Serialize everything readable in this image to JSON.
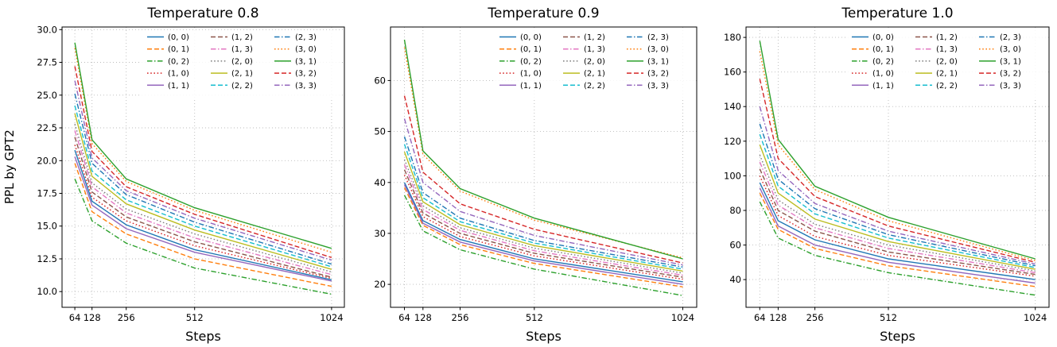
{
  "series_styles": [
    {
      "name": "(0, 0)",
      "color": "#1f77b4",
      "dash": "solid"
    },
    {
      "name": "(0, 1)",
      "color": "#ff7f0e",
      "dash": "dashed"
    },
    {
      "name": "(0, 2)",
      "color": "#2ca02c",
      "dash": "dashdot"
    },
    {
      "name": "(1, 0)",
      "color": "#d62728",
      "dash": "dotted"
    },
    {
      "name": "(1, 1)",
      "color": "#9467bd",
      "dash": "solid"
    },
    {
      "name": "(1, 2)",
      "color": "#8c564b",
      "dash": "dashed"
    },
    {
      "name": "(1, 3)",
      "color": "#e377c2",
      "dash": "dashdot"
    },
    {
      "name": "(2, 0)",
      "color": "#7f7f7f",
      "dash": "dotted"
    },
    {
      "name": "(2, 1)",
      "color": "#bcbd22",
      "dash": "solid"
    },
    {
      "name": "(2, 2)",
      "color": "#17becf",
      "dash": "dashed"
    },
    {
      "name": "(2, 3)",
      "color": "#1f77b4",
      "dash": "dashdot"
    },
    {
      "name": "(3, 0)",
      "color": "#ff7f0e",
      "dash": "dotted"
    },
    {
      "name": "(3, 1)",
      "color": "#2ca02c",
      "dash": "solid"
    },
    {
      "name": "(3, 2)",
      "color": "#d62728",
      "dash": "dashed"
    },
    {
      "name": "(3, 3)",
      "color": "#9467bd",
      "dash": "dashdot"
    }
  ],
  "legend": {
    "columns": 3,
    "rows": 5,
    "position": "upper-right"
  },
  "chart_data": [
    {
      "type": "line",
      "title": "Temperature 0.8",
      "xlabel": "Steps",
      "ylabel": "PPL by GPT2",
      "x": [
        64,
        128,
        256,
        512,
        1024
      ],
      "xlim": [
        16,
        1072
      ],
      "ylim": [
        8.8,
        30.2
      ],
      "xticks": [
        64,
        128,
        256,
        512,
        1024
      ],
      "xtick_labels": [
        "64",
        "128",
        "256",
        "512",
        "1024"
      ],
      "yticks": [
        10,
        12.5,
        15,
        17.5,
        20,
        22.5,
        25,
        27.5,
        30
      ],
      "ytick_labels": [
        "10.0",
        "12.5",
        "15.0",
        "17.5",
        "20.0",
        "22.5",
        "25.0",
        "27.5",
        "30.0"
      ],
      "grid": true,
      "series": [
        {
          "name": "(0, 0)",
          "values": [
            20.8,
            16.9,
            15.1,
            13.2,
            10.9
          ]
        },
        {
          "name": "(0, 1)",
          "values": [
            19.8,
            16.1,
            14.4,
            12.5,
            10.4
          ]
        },
        {
          "name": "(0, 2)",
          "values": [
            18.6,
            15.4,
            13.7,
            11.8,
            9.8
          ]
        },
        {
          "name": "(1, 0)",
          "values": [
            21.2,
            17.2,
            15.4,
            13.5,
            11.0
          ]
        },
        {
          "name": "(1, 1)",
          "values": [
            20.3,
            16.6,
            14.8,
            13.0,
            10.8
          ]
        },
        {
          "name": "(1, 2)",
          "values": [
            21.8,
            17.6,
            15.7,
            13.8,
            11.1
          ]
        },
        {
          "name": "(1, 3)",
          "values": [
            22.3,
            18.0,
            16.0,
            14.1,
            11.3
          ]
        },
        {
          "name": "(2, 0)",
          "values": [
            22.8,
            18.3,
            16.3,
            14.4,
            11.5
          ]
        },
        {
          "name": "(2, 1)",
          "values": [
            23.6,
            18.8,
            16.7,
            14.7,
            11.7
          ]
        },
        {
          "name": "(2, 2)",
          "values": [
            24.2,
            19.2,
            17.0,
            15.0,
            11.9
          ]
        },
        {
          "name": "(2, 3)",
          "values": [
            25.1,
            19.8,
            17.4,
            15.3,
            12.1
          ]
        },
        {
          "name": "(3, 0)",
          "values": [
            28.6,
            21.3,
            18.4,
            16.2,
            13.0
          ]
        },
        {
          "name": "(3, 1)",
          "values": [
            29.0,
            21.6,
            18.6,
            16.4,
            13.3
          ]
        },
        {
          "name": "(3, 2)",
          "values": [
            27.2,
            20.7,
            18.0,
            15.9,
            12.6
          ]
        },
        {
          "name": "(3, 3)",
          "values": [
            26.1,
            20.2,
            17.7,
            15.6,
            12.4
          ]
        }
      ]
    },
    {
      "type": "line",
      "title": "Temperature 0.9",
      "xlabel": "Steps",
      "x": [
        64,
        128,
        256,
        512,
        1024
      ],
      "xlim": [
        16,
        1072
      ],
      "ylim": [
        15.5,
        70.5
      ],
      "xticks": [
        64,
        128,
        256,
        512,
        1024
      ],
      "xtick_labels": [
        "64",
        "128",
        "256",
        "512",
        "1024"
      ],
      "yticks": [
        20,
        30,
        40,
        50,
        60
      ],
      "ytick_labels": [
        "20",
        "30",
        "40",
        "50",
        "60"
      ],
      "grid": true,
      "series": [
        {
          "name": "(0, 0)",
          "values": [
            40.0,
            32.5,
            28.8,
            25.0,
            20.5
          ]
        },
        {
          "name": "(0, 1)",
          "values": [
            39.0,
            31.6,
            27.8,
            24.1,
            19.5
          ]
        },
        {
          "name": "(0, 2)",
          "values": [
            37.5,
            30.5,
            26.8,
            23.0,
            17.8
          ]
        },
        {
          "name": "(1, 0)",
          "values": [
            41.5,
            33.3,
            29.4,
            25.6,
            21.0
          ]
        },
        {
          "name": "(1, 1)",
          "values": [
            39.6,
            32.0,
            28.3,
            24.6,
            20.0
          ]
        },
        {
          "name": "(1, 2)",
          "values": [
            42.5,
            34.0,
            30.0,
            26.1,
            21.4
          ]
        },
        {
          "name": "(1, 3)",
          "values": [
            43.5,
            34.7,
            30.6,
            26.6,
            21.8
          ]
        },
        {
          "name": "(2, 0)",
          "values": [
            44.5,
            35.4,
            31.1,
            27.1,
            22.2
          ]
        },
        {
          "name": "(2, 1)",
          "values": [
            46.0,
            36.2,
            31.7,
            27.6,
            22.6
          ]
        },
        {
          "name": "(2, 2)",
          "values": [
            47.5,
            37.0,
            32.3,
            28.1,
            23.0
          ]
        },
        {
          "name": "(2, 3)",
          "values": [
            49.0,
            38.0,
            33.0,
            28.6,
            23.4
          ]
        },
        {
          "name": "(3, 0)",
          "values": [
            66.5,
            45.5,
            38.3,
            32.6,
            25.2
          ]
        },
        {
          "name": "(3, 1)",
          "values": [
            68.0,
            46.2,
            38.8,
            33.0,
            25.0
          ]
        },
        {
          "name": "(3, 2)",
          "values": [
            57.0,
            42.0,
            35.8,
            30.8,
            24.2
          ]
        },
        {
          "name": "(3, 3)",
          "values": [
            52.5,
            40.0,
            34.3,
            29.6,
            23.8
          ]
        }
      ]
    },
    {
      "type": "line",
      "title": "Temperature 1.0",
      "xlabel": "Steps",
      "x": [
        64,
        128,
        256,
        512,
        1024
      ],
      "xlim": [
        16,
        1072
      ],
      "ylim": [
        24,
        186
      ],
      "xticks": [
        64,
        128,
        256,
        512,
        1024
      ],
      "xtick_labels": [
        "64",
        "128",
        "256",
        "512",
        "1024"
      ],
      "yticks": [
        40,
        60,
        80,
        100,
        120,
        140,
        160,
        180
      ],
      "ytick_labels": [
        "40",
        "60",
        "80",
        "100",
        "120",
        "140",
        "160",
        "180"
      ],
      "grid": true,
      "series": [
        {
          "name": "(0, 0)",
          "values": [
            96,
            74,
            63,
            52,
            40
          ]
        },
        {
          "name": "(0, 1)",
          "values": [
            90,
            69,
            58,
            48,
            36
          ]
        },
        {
          "name": "(0, 2)",
          "values": [
            85,
            64,
            54,
            44,
            31
          ]
        },
        {
          "name": "(1, 0)",
          "values": [
            100,
            77,
            65,
            54,
            42
          ]
        },
        {
          "name": "(1, 1)",
          "values": [
            93,
            71,
            60,
            50,
            38
          ]
        },
        {
          "name": "(1, 2)",
          "values": [
            104,
            80,
            68,
            56,
            43
          ]
        },
        {
          "name": "(1, 3)",
          "values": [
            108,
            83,
            70,
            58,
            44
          ]
        },
        {
          "name": "(2, 0)",
          "values": [
            112,
            86,
            72,
            60,
            45
          ]
        },
        {
          "name": "(2, 1)",
          "values": [
            118,
            90,
            75,
            62,
            46
          ]
        },
        {
          "name": "(2, 2)",
          "values": [
            124,
            94,
            78,
            64,
            47
          ]
        },
        {
          "name": "(2, 3)",
          "values": [
            130,
            98,
            81,
            66,
            48
          ]
        },
        {
          "name": "(3, 0)",
          "values": [
            172,
            118,
            92,
            74,
            51
          ]
        },
        {
          "name": "(3, 1)",
          "values": [
            178,
            121,
            94,
            76,
            52
          ]
        },
        {
          "name": "(3, 2)",
          "values": [
            156,
            110,
            88,
            71,
            50
          ]
        },
        {
          "name": "(3, 3)",
          "values": [
            140,
            103,
            84,
            68,
            49
          ]
        }
      ]
    }
  ]
}
